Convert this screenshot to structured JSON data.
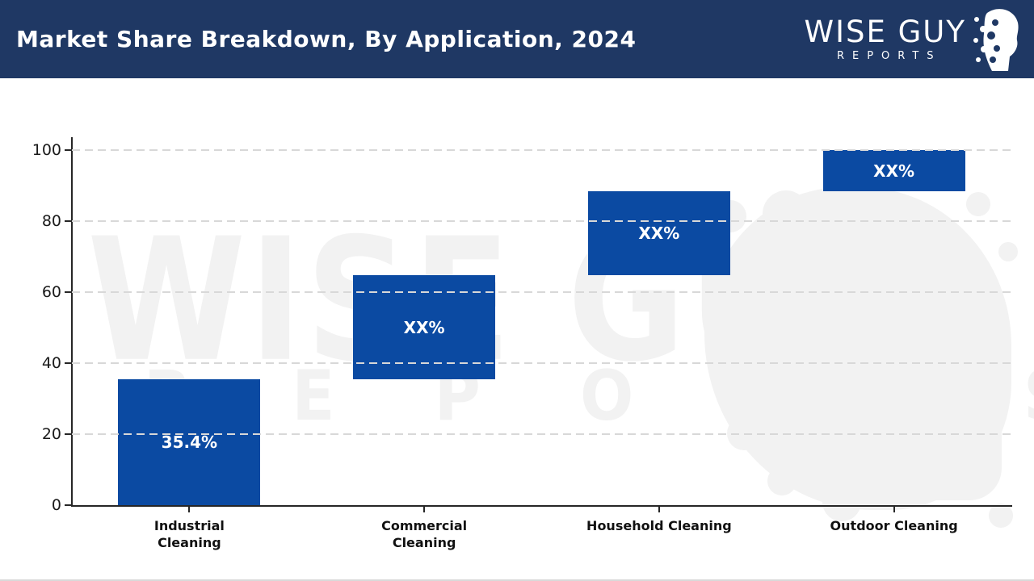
{
  "header": {
    "title": "Market Share Breakdown, By Application, 2024",
    "logo": {
      "line1": "WISE GUY",
      "line2": "REPORTS"
    }
  },
  "watermark": {
    "line1": "WISE GUY",
    "line2": "R E P O R T S"
  },
  "colors": {
    "header_bg": "#1f3864",
    "bar": "#0b4aa2",
    "bar_label": "#ffffff",
    "axis": "#262626",
    "gridline": "#d8d8d8",
    "tick_label": "#1a1a1a",
    "watermark": "#f2f2f2"
  },
  "chart_data": {
    "type": "bar",
    "subtype": "waterfall segment breakdown, floating bars",
    "title": "Market Share Breakdown, By Application, 2024",
    "categories": [
      "Industrial Cleaning",
      "Commercial Cleaning",
      "Household Cleaning",
      "Outdoor Cleaning"
    ],
    "category_label_lines": [
      [
        "Industrial",
        "Cleaning"
      ],
      [
        "Commercial",
        "Cleaning"
      ],
      [
        "Household Cleaning"
      ],
      [
        "Outdoor Cleaning"
      ]
    ],
    "segments": [
      {
        "category": "Industrial Cleaning",
        "start": 0,
        "end": 35.4,
        "label": "35.4%"
      },
      {
        "category": "Commercial Cleaning",
        "start": 35.4,
        "end": 64.8,
        "label": "XX%"
      },
      {
        "category": "Household Cleaning",
        "start": 64.8,
        "end": 88.4,
        "label": "XX%"
      },
      {
        "category": "Outdoor Cleaning",
        "start": 88.4,
        "end": 100,
        "label": "XX%"
      }
    ],
    "xlabel": "",
    "ylabel": "",
    "ylim": [
      0,
      100
    ],
    "yticks": [
      0,
      20,
      40,
      60,
      80,
      100
    ],
    "grid": "horizontal dashed",
    "legend": "none"
  }
}
